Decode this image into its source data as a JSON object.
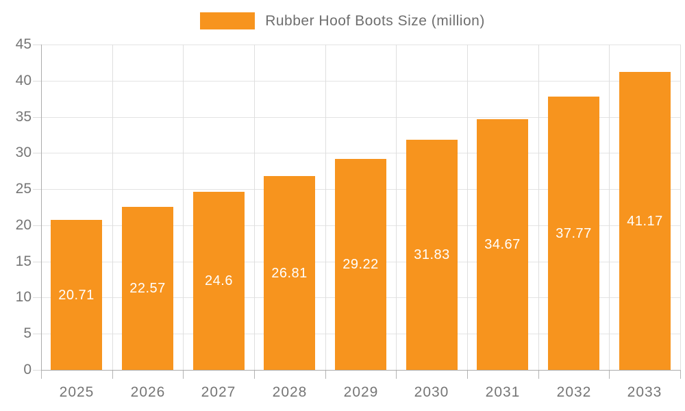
{
  "legend": {
    "label": "Rubber Hoof Boots Size (million)",
    "swatch_color": "#F7941E"
  },
  "chart_data": {
    "type": "bar",
    "title": "Rubber Hoof Boots Size (million)",
    "categories": [
      "2025",
      "2026",
      "2027",
      "2028",
      "2029",
      "2030",
      "2031",
      "2032",
      "2033"
    ],
    "values": [
      20.71,
      22.57,
      24.6,
      26.81,
      29.22,
      31.83,
      34.67,
      37.77,
      41.17
    ],
    "value_labels": [
      "20.71",
      "22.57",
      "24.6",
      "26.81",
      "29.22",
      "31.83",
      "34.67",
      "37.77",
      "41.17"
    ],
    "xlabel": "",
    "ylabel": "",
    "ylim": [
      0,
      45
    ],
    "yticks": [
      0,
      5,
      10,
      15,
      20,
      25,
      30,
      35,
      40,
      45
    ],
    "grid": true,
    "legend_position": "top",
    "colors": {
      "bar": "#F7941E",
      "value_label": "#FFFFFF",
      "axis_text": "#757575",
      "legend_text": "#6E6E6E",
      "gridline": "#E3E3E3",
      "axis_line": "#ABABAB",
      "background": "#FFFFFF"
    }
  }
}
